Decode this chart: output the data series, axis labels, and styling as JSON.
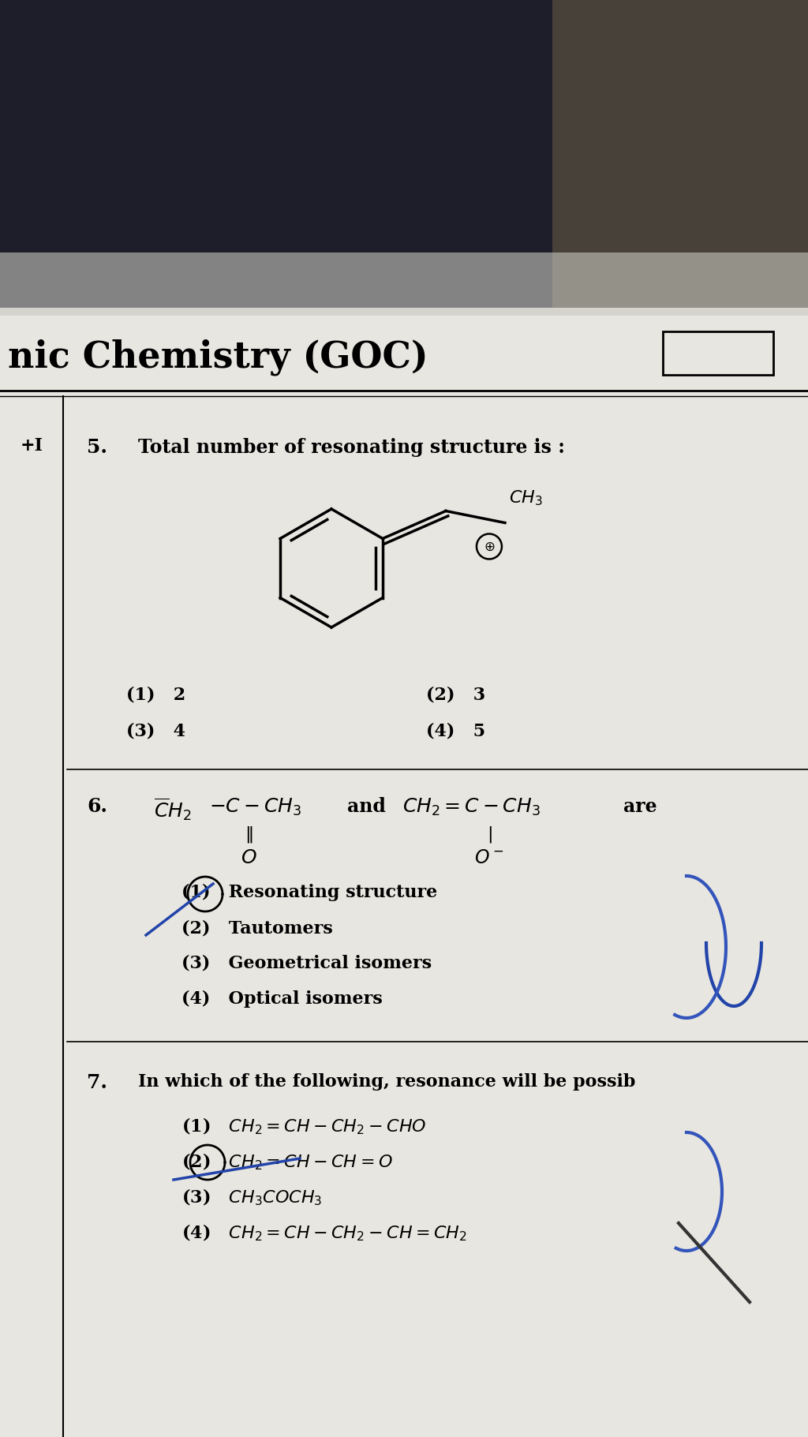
{
  "bg_paper_color": "#e8e6e0",
  "bg_top_color": "#1a1a28",
  "title_text": "nic Chemistry (GOC)",
  "title_fontsize": 32,
  "margin_label": "+I",
  "q5_text": "Total number of resonating structure is :",
  "q6_label": "6.",
  "q7_label": "7.",
  "q7_text": "In which of the following, resonance will be possib"
}
